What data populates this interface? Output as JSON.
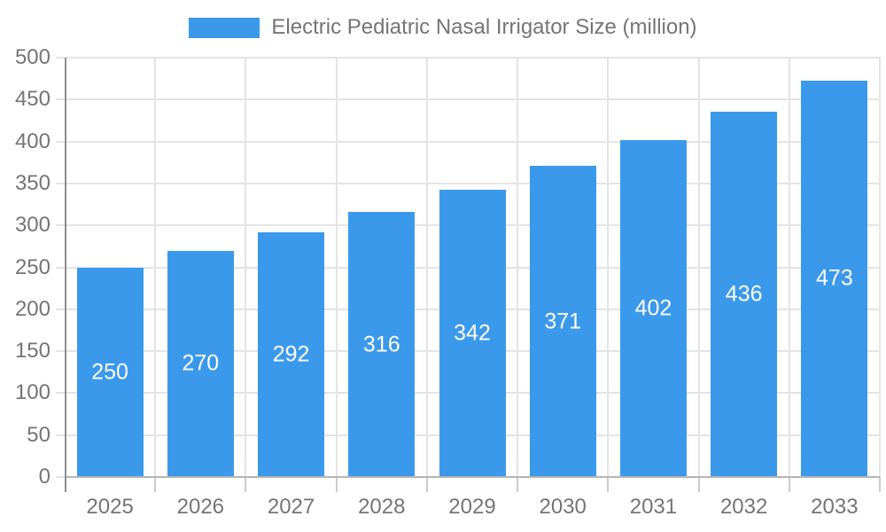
{
  "legend": {
    "label": "Electric Pediatric Nasal Irrigator Size (million)"
  },
  "chart_data": {
    "type": "bar",
    "title": "Electric Pediatric Nasal Irrigator Size (million)",
    "categories": [
      "2025",
      "2026",
      "2027",
      "2028",
      "2029",
      "2030",
      "2031",
      "2032",
      "2033"
    ],
    "series": [
      {
        "name": "Electric Pediatric Nasal Irrigator Size (million)",
        "values": [
          250,
          270,
          292,
          316,
          342,
          371,
          402,
          436,
          473
        ]
      }
    ],
    "xlabel": "",
    "ylabel": "",
    "ylim": [
      0,
      500
    ],
    "ytick_step": 50,
    "ytick_labels": [
      "0",
      "50",
      "100",
      "150",
      "200",
      "250",
      "300",
      "350",
      "400",
      "450",
      "500"
    ],
    "grid": true,
    "legend_position": "top-center",
    "value_labels": "inside-center-white",
    "colors": {
      "bar": "#3b99ec",
      "bar_label": "#ffffff",
      "axis_label": "#757575",
      "gridline": "#e4e4e4",
      "y_axis_line": "#8f8f8f",
      "x_axis_line": "#b5b5b5",
      "tick_mark": "#cccccc",
      "background": "#ffffff"
    }
  }
}
